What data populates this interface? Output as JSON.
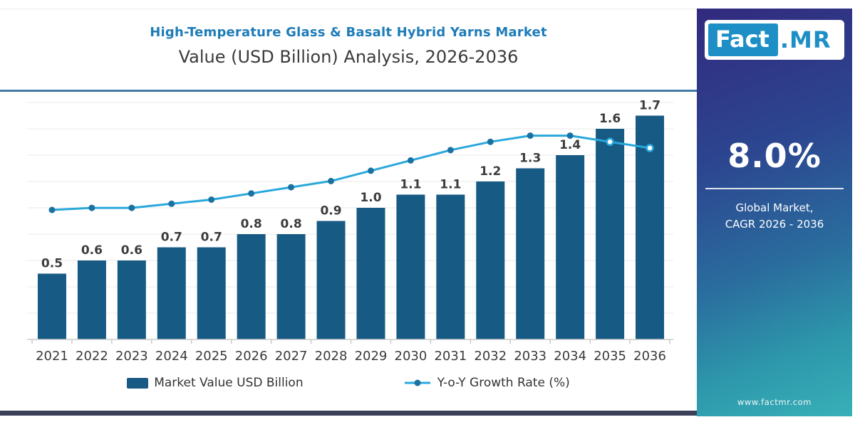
{
  "header": {
    "title": "High-Temperature Glass & Basalt Hybrid Yarns Market",
    "subtitle": "Value (USD Billion) Analysis, 2026-2036"
  },
  "chart_data": {
    "type": "bar+line combo",
    "title": "High-Temperature Glass & Basalt Hybrid Yarns Market",
    "subtitle": "Value (USD Billion) Analysis, 2026-2036",
    "categories": [
      "2021",
      "2022",
      "2023",
      "2024",
      "2025",
      "2026",
      "2027",
      "2028",
      "2029",
      "2030",
      "2031",
      "2032",
      "2033",
      "2034",
      "2035",
      "2036"
    ],
    "series": [
      {
        "name": "Market Value USD Billion",
        "type": "bar",
        "values": [
          0.5,
          0.6,
          0.6,
          0.7,
          0.7,
          0.8,
          0.8,
          0.9,
          1.0,
          1.1,
          1.1,
          1.2,
          1.3,
          1.4,
          1.6,
          1.7
        ],
        "labels": [
          "0.5",
          "0.6",
          "0.6",
          "0.7",
          "0.7",
          "0.8",
          "0.8",
          "0.9",
          "1.0",
          "1.1",
          "1.1",
          "1.2",
          "1.3",
          "1.4",
          "1.6",
          "1.7"
        ],
        "color": "#175a84"
      },
      {
        "name": "Y-o-Y Growth Rate (%)",
        "type": "line",
        "values_pct": [
          5.0,
          5.1,
          5.1,
          5.3,
          5.5,
          5.8,
          6.1,
          6.4,
          6.9,
          7.4,
          7.9,
          8.3,
          8.6,
          8.6,
          8.3,
          8.0
        ],
        "values_estimated": true,
        "color": "#29a8dc",
        "marker_color": "#1a72a3",
        "open_markers_last_n": 2
      }
    ],
    "legend": [
      "Market Value USD Billion",
      "Y-o-Y Growth Rate (%)"
    ],
    "legend_position": "bottom",
    "y_axis_labels_visible": false,
    "grid": "faint-horizontal"
  },
  "sidebar": {
    "logo_fact": "Fact",
    "logo_mr": ".MR",
    "cagr_value": "8.0%",
    "cagr_label_line1": "Global Market,",
    "cagr_label_line2": "CAGR 2026 - 2036",
    "website": "www.factmr.com"
  },
  "colors": {
    "title_blue": "#1e7cb8",
    "divider_blue": "#4479a3",
    "bar_fill": "#175a84",
    "line_blue": "#29a8dc",
    "marker_fill": "#1a72a3",
    "bottom_bar": "#3c415a",
    "sidebar_gradient_top": "#322a7e",
    "sidebar_gradient_bottom": "#38b0b8",
    "logo_blue": "#1d8fc6"
  }
}
